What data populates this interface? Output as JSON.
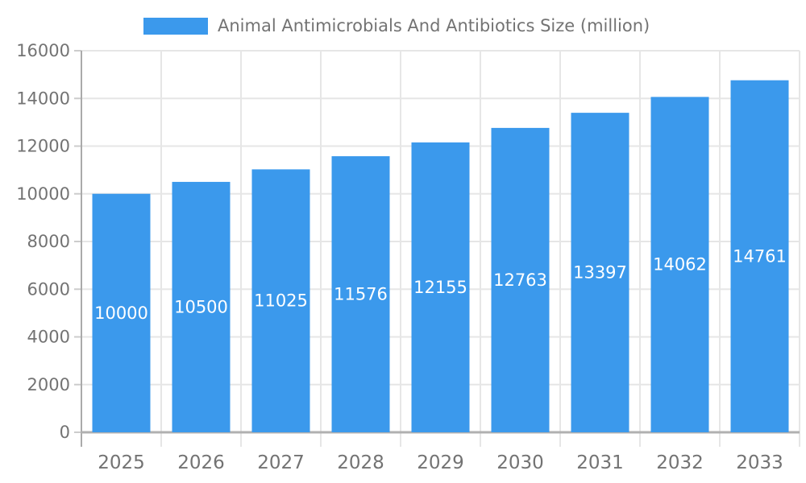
{
  "chart_data": {
    "type": "bar",
    "title": "Animal Antimicrobials And Antibiotics Size (million)",
    "categories": [
      "2025",
      "2026",
      "2027",
      "2028",
      "2029",
      "2030",
      "2031",
      "2032",
      "2033"
    ],
    "values": [
      10000,
      10500,
      11025,
      11576,
      12155,
      12763,
      13397,
      14062,
      14761
    ],
    "xlabel": "",
    "ylabel": "",
    "ylim": [
      0,
      16000
    ],
    "ytick_step": 2000,
    "grid": true,
    "legend_position": "top",
    "colors": {
      "bar": "#3b99ec",
      "bar_label": "#ffffff",
      "grid": "#e6e6e6",
      "axis": "#aaaaaa",
      "baseline": "#b0b0b0",
      "tick": "#cccccc",
      "text": "#737373"
    }
  }
}
